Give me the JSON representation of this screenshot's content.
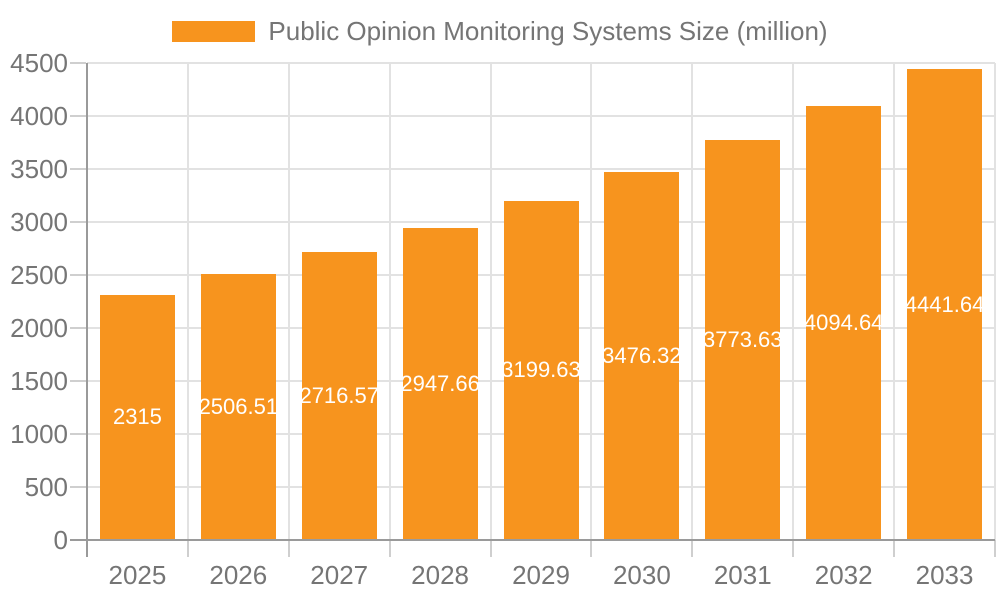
{
  "chart_data": {
    "type": "bar",
    "title": "Public Opinion Monitoring Systems Size (million)",
    "legend": {
      "label": "Public Opinion Monitoring Systems Size (million)",
      "position": "top"
    },
    "categories": [
      "2025",
      "2026",
      "2027",
      "2028",
      "2029",
      "2030",
      "2031",
      "2032",
      "2033"
    ],
    "series": [
      {
        "name": "Public Opinion Monitoring Systems Size (million)",
        "values": [
          2315,
          2506.51,
          2716.57,
          2947.66,
          3199.63,
          3476.32,
          3773.63,
          4094.64,
          4441.64
        ],
        "labels": [
          "2315",
          "2506.51",
          "2716.57",
          "2947.66",
          "3199.63",
          "3476.32",
          "3773.63",
          "4094.64",
          "4441.64"
        ]
      }
    ],
    "xlabel": "",
    "ylabel": "",
    "ylim": [
      0,
      4500
    ],
    "ytick_interval": 500,
    "yticks": [
      "0",
      "500",
      "1000",
      "1500",
      "2000",
      "2500",
      "3000",
      "3500",
      "4000",
      "4500"
    ],
    "grid": true
  },
  "colors": {
    "bar": "#F7941E",
    "bar_label": "#FFFFFF",
    "axis_text": "#757575",
    "axis_line": "#9A9A9A",
    "gridline": "#E2E2E2",
    "tick": "#CFCFCF",
    "background": "#FFFFFF"
  }
}
